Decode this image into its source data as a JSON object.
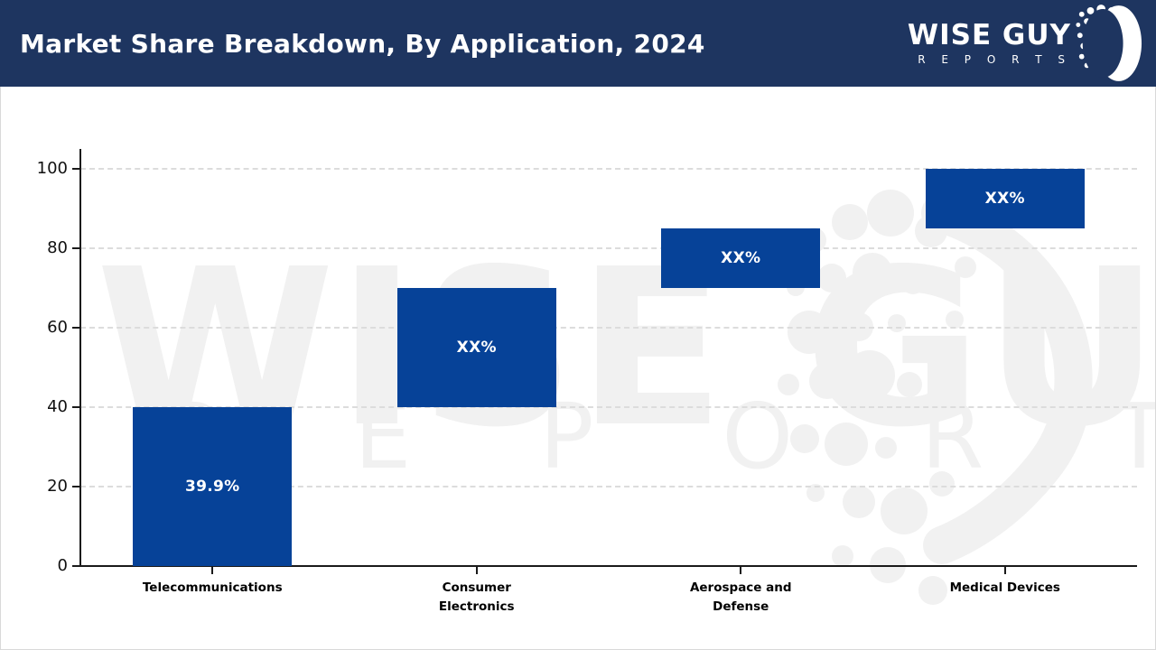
{
  "header": {
    "title": "Market Share Breakdown, By Application, 2024",
    "logo": {
      "wordmark": "WISE GUY",
      "subtext": "R E P O R T S"
    }
  },
  "watermark": {
    "wordmark": "WISE GUY",
    "subtext": "R E P O R T S"
  },
  "colors": {
    "header_bg": "#1e3560",
    "header_text": "#ffffff",
    "bar": "#064298",
    "bar_label_text": "#ffffff",
    "grid": "#dcdcdc",
    "axis": "#1a1a1a",
    "tick_text": "#111111",
    "watermark": "#f1f1f1",
    "card_border": "#d9d9d9"
  },
  "chart_data": {
    "type": "bar",
    "variant": "floating-cumulative",
    "title": "Market Share Breakdown, By Application, 2024",
    "categories": [
      "Telecommunications",
      "Consumer Electronics",
      "Aerospace and Defense",
      "Medical Devices"
    ],
    "category_label_lines": [
      [
        "Telecommunications"
      ],
      [
        "Consumer",
        "Electronics"
      ],
      [
        "Aerospace and",
        "Defense"
      ],
      [
        "Medical Devices"
      ]
    ],
    "bar_starts": [
      0,
      39.9,
      70,
      85
    ],
    "values": [
      39.9,
      30.1,
      15,
      15
    ],
    "bar_ranges": [
      [
        0,
        39.9
      ],
      [
        39.9,
        70
      ],
      [
        70,
        85
      ],
      [
        85,
        100
      ]
    ],
    "bar_labels": [
      "39.9%",
      "XX%",
      "XX%",
      "XX%"
    ],
    "xlabel": "",
    "ylabel": "",
    "ylim": [
      0,
      105
    ],
    "yticks": [
      0,
      20,
      40,
      60,
      80,
      100
    ],
    "grid": "dashed-horizontal",
    "legend": "none",
    "unit": "%"
  }
}
